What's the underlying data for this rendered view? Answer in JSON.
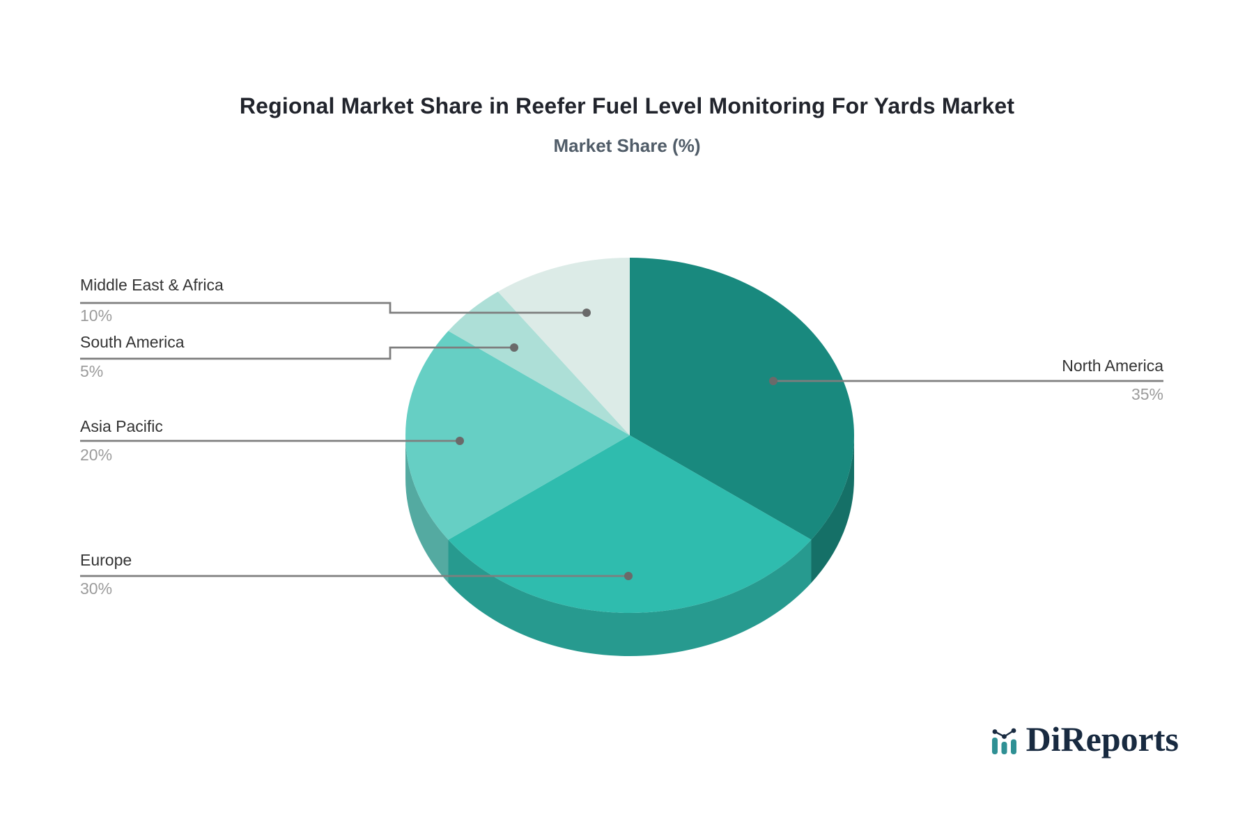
{
  "header": {
    "title": "Regional Market Share in Reefer Fuel Level Monitoring For Yards Market",
    "subtitle": "Market Share (%)"
  },
  "chart_data": {
    "type": "pie",
    "style": "3d",
    "title": "Regional Market Share in Reefer Fuel Level Monitoring For Yards Market",
    "subtitle": "Market Share (%)",
    "start_angle_deg": 0,
    "direction": "clockwise",
    "slices": [
      {
        "label": "North America",
        "value": 35,
        "value_label": "35%",
        "color": "#19897E"
      },
      {
        "label": "Europe",
        "value": 30,
        "value_label": "30%",
        "color": "#2FBCAE"
      },
      {
        "label": "Asia Pacific",
        "value": 20,
        "value_label": "20%",
        "color": "#66CFC4"
      },
      {
        "label": "South America",
        "value": 5,
        "value_label": "5%",
        "color": "#ADDFD7"
      },
      {
        "label": "Middle East & Africa",
        "value": 10,
        "value_label": "10%",
        "color": "#DCEBE7"
      }
    ],
    "legend_position": "callout-labels",
    "leader_line_color": "#7E7E7E",
    "leader_dot_color": "#6A6A6A",
    "label_text_color": "#333333",
    "value_text_color": "#9B9B9B",
    "background_color": "#FFFFFF"
  },
  "branding": {
    "name": "DiReports",
    "icon": "bar-line-chart-icon",
    "text_color": "#182A40",
    "bar_color": "#2F9094"
  }
}
